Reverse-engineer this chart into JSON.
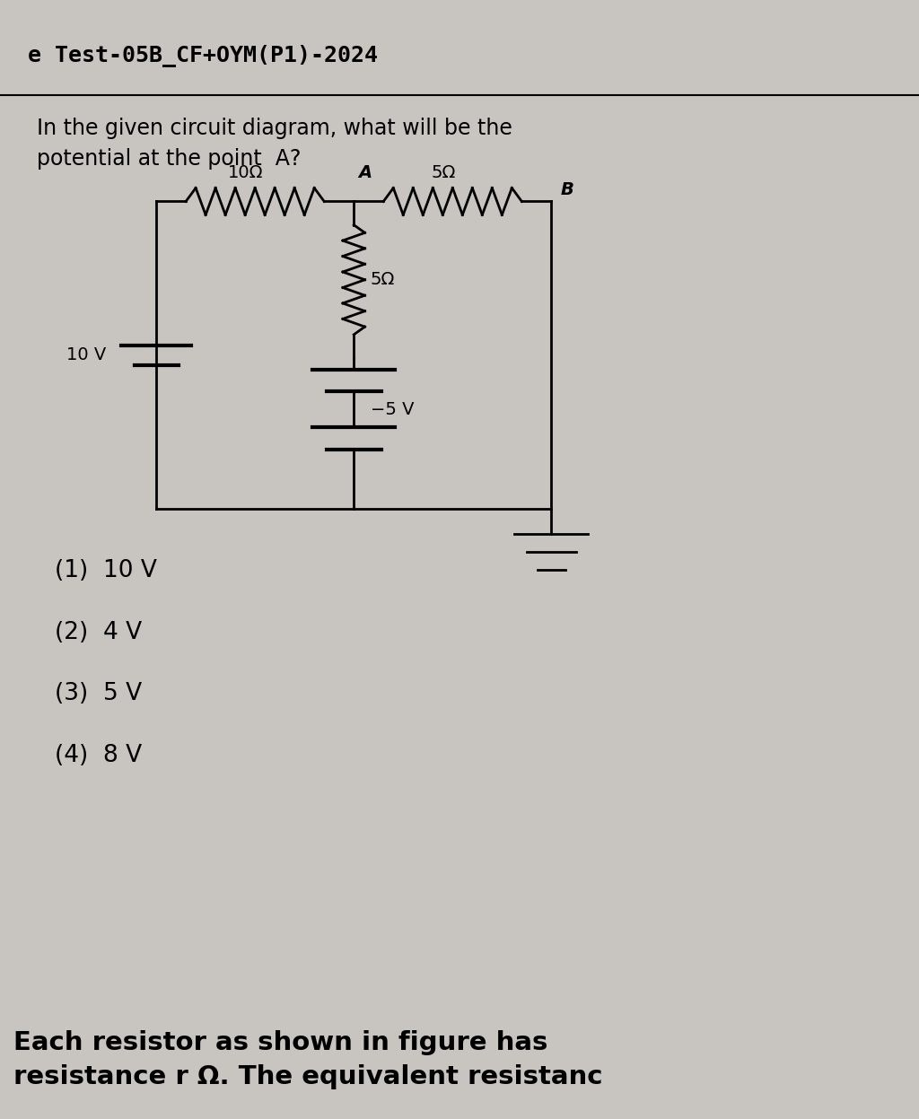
{
  "bg_color": "#c8c4c0",
  "header_bg": "#c8c4c0",
  "header_text": "e Test-05B_CF+OYM(P1)-2024",
  "question_line1": "In the given circuit diagram, what will be the",
  "question_line2": "potential at the point  A?",
  "label_10ohm": "10Ω",
  "label_5ohm_top": "5Ω",
  "label_5ohm_mid": "5Ω",
  "label_5V": "−5 V",
  "label_A": "A",
  "label_B": "B",
  "label_10V": "10 V",
  "options": [
    "(1)  10 V",
    "(2)  4 V",
    "(3)  5 V",
    "(4)  8 V"
  ],
  "footer_line1": "Each resistor as shown in figure has",
  "footer_line2": "resistance r Ω. The equivalent resistanc"
}
